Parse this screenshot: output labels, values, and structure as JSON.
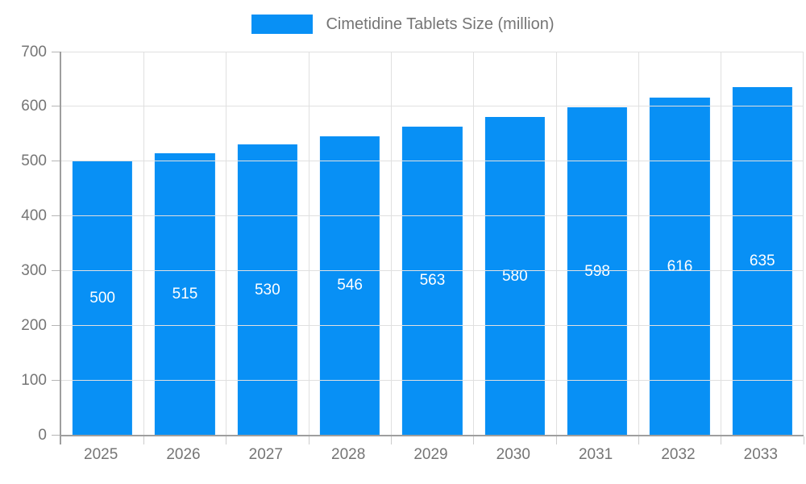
{
  "legend": {
    "label": "Cimetidine Tablets Size (million)"
  },
  "colors": {
    "bar": "#0890f5",
    "axis": "#9e9e9e",
    "grid": "#e0e0e0",
    "tick_text": "#757575",
    "value_text": "#ffffff"
  },
  "chart_data": {
    "type": "bar",
    "title": "Cimetidine Tablets Size (million)",
    "categories": [
      "2025",
      "2026",
      "2027",
      "2028",
      "2029",
      "2030",
      "2031",
      "2032",
      "2033"
    ],
    "values": [
      500,
      515,
      530,
      546,
      563,
      580,
      598,
      616,
      635
    ],
    "xlabel": "",
    "ylabel": "",
    "ylim": [
      0,
      700
    ],
    "yticks": [
      0,
      100,
      200,
      300,
      400,
      500,
      600,
      700
    ],
    "grid": true,
    "legend_position": "top-center",
    "value_labels": "inside-center-white"
  }
}
